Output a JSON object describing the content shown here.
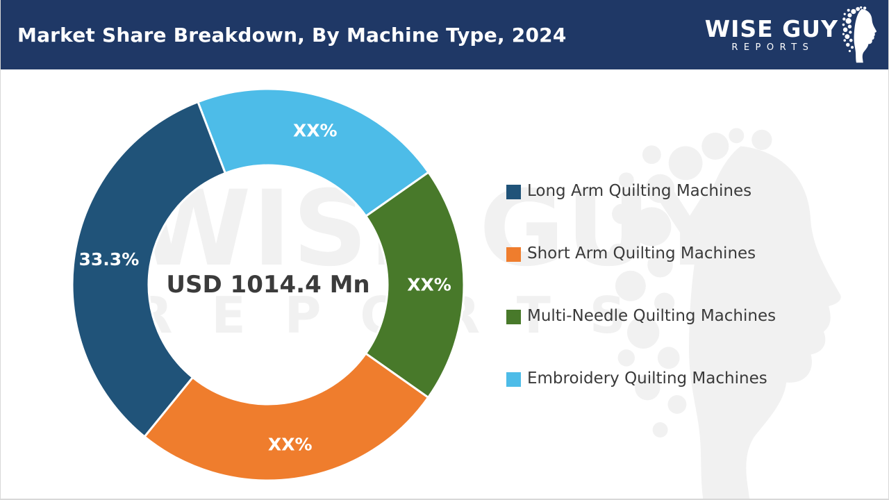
{
  "header": {
    "title": "Market Share Breakdown, By Machine Type, 2024",
    "logo": {
      "line1": "WISE GUY",
      "line2": "REPORTS"
    }
  },
  "watermark": {
    "line1": "WISE GUY",
    "line2": "REPORTS"
  },
  "chart_data": {
    "type": "pie",
    "subtype": "donut",
    "title": "Market Share Breakdown, By Machine Type, 2024",
    "center_label": "USD 1014.4 Mn",
    "start_angle_deg": -21,
    "legend_position": "right",
    "segments": [
      {
        "label": "Long Arm Quilting Machines",
        "display_value": "33.3%",
        "share_pct_est": 33.3,
        "color": "#205379"
      },
      {
        "label": "Short Arm Quilting Machines",
        "display_value": "XX%",
        "share_pct_est": 26.1,
        "color": "#ef7d2d"
      },
      {
        "label": "Multi-Needle Quilting Machines",
        "display_value": "XX%",
        "share_pct_est": 19.5,
        "color": "#48792a"
      },
      {
        "label": "Embroidery Quilting Machines",
        "display_value": "XX%",
        "share_pct_est": 21.1,
        "color": "#4dbce8"
      }
    ],
    "clockwise_draw_order": [
      3,
      2,
      1,
      0
    ]
  },
  "colors": {
    "header_bg": "#1f3866",
    "watermark": "#f1f1f1",
    "slice_gap": "#ffffff",
    "center_text": "#3b3b3b",
    "legend_text": "#3a3a3a"
  }
}
